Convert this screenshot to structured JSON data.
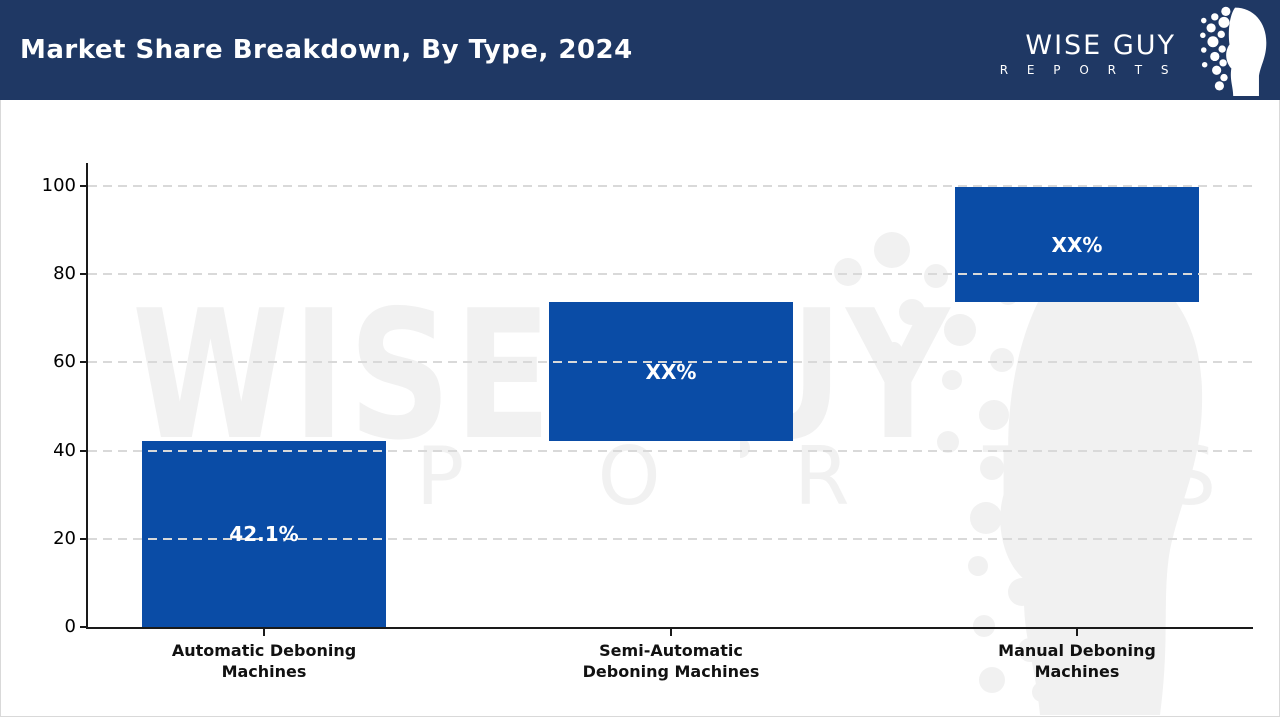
{
  "header": {
    "title": "Market Share Breakdown, By Type, 2024",
    "logo": {
      "word": "WISE GUY",
      "sub": "R E P O R T S"
    }
  },
  "watermark": {
    "line1": "WISE GUY",
    "line2": "E P O R T S"
  },
  "colors": {
    "header_bg": "#1f3864",
    "bar": "#0a4ca6",
    "grid": "#d9d9d9",
    "axis": "#1a1a1a",
    "bar_label": "#ffffff",
    "tick_label": "#000000",
    "watermark": "#f1f1f1"
  },
  "chart_data": {
    "type": "bar",
    "subtype": "floating-column-waterfall",
    "title": "Market Share Breakdown, By Type, 2024",
    "categories": [
      "Automatic Deboning Machines",
      "Semi-Automatic Deboning Machines",
      "Manual Deboning Machines"
    ],
    "bars": [
      {
        "category": "Automatic Deboning Machines",
        "category_lines": [
          "Automatic Deboning",
          "Machines"
        ],
        "start": 0,
        "end": 42.1,
        "label": "42.1%"
      },
      {
        "category": "Semi-Automatic Deboning Machines",
        "category_lines": [
          "Semi-Automatic",
          "Deboning Machines"
        ],
        "start": 42.1,
        "end": 73.6,
        "label": "XX%"
      },
      {
        "category": "Manual Deboning Machines",
        "category_lines": [
          "Manual Deboning",
          "Machines"
        ],
        "start": 73.6,
        "end": 99.7,
        "label": "XX%"
      }
    ],
    "yticks": [
      0,
      20,
      40,
      60,
      80,
      100
    ],
    "ylim": [
      0,
      105
    ],
    "xlabel": "",
    "ylabel": "",
    "grid": "dashed horizontal gridlines drawn above bars",
    "legend": "none"
  }
}
